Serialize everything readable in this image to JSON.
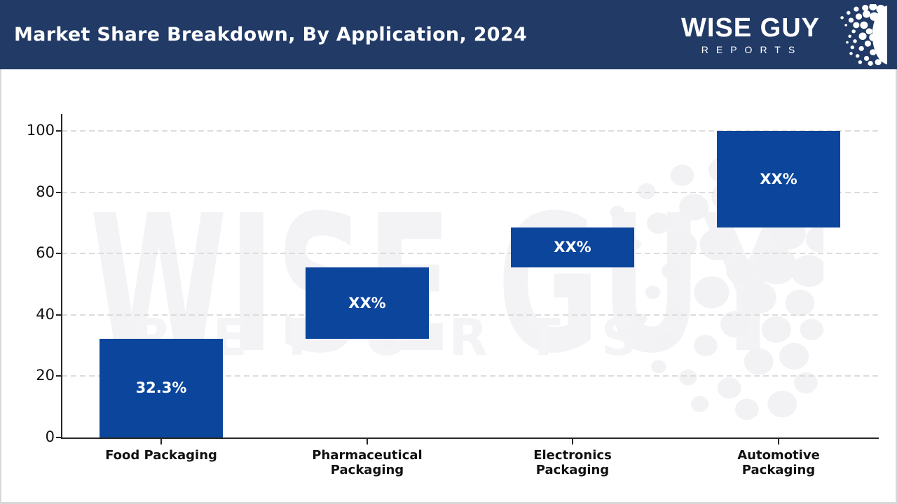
{
  "header": {
    "title": "Market Share Breakdown, By Application, 2024",
    "logo": {
      "brand": "WISE GUY",
      "sub": "REPORTS"
    }
  },
  "watermark": {
    "brand": "WISE GUY",
    "sub": "REPORTS"
  },
  "chart_data": {
    "type": "bar",
    "subtype": "floating-waterfall-segments",
    "title": "Market Share Breakdown, By Application, 2024",
    "categories": [
      "Food Packaging",
      "Pharmaceutical\nPackaging",
      "Electronics\nPackaging",
      "Automotive\nPackaging"
    ],
    "bars": [
      {
        "category": "Food Packaging",
        "label": "32.3%",
        "start": 0,
        "end": 32.3
      },
      {
        "category": "Pharmaceutical Packaging",
        "label": "XX%",
        "start": 32.3,
        "end": 55.5
      },
      {
        "category": "Electronics Packaging",
        "label": "XX%",
        "start": 55.5,
        "end": 68.5
      },
      {
        "category": "Automotive Packaging",
        "label": "XX%",
        "start": 68.5,
        "end": 100
      }
    ],
    "y_ticks": [
      0,
      20,
      40,
      60,
      80,
      100
    ],
    "ylim": [
      0,
      106
    ],
    "xlabel": "",
    "ylabel": "",
    "legend": "none",
    "grid": "horizontal-dashed",
    "bar_color": "#0b459c",
    "label_color": "#ffffff",
    "header_color": "#213a66"
  }
}
